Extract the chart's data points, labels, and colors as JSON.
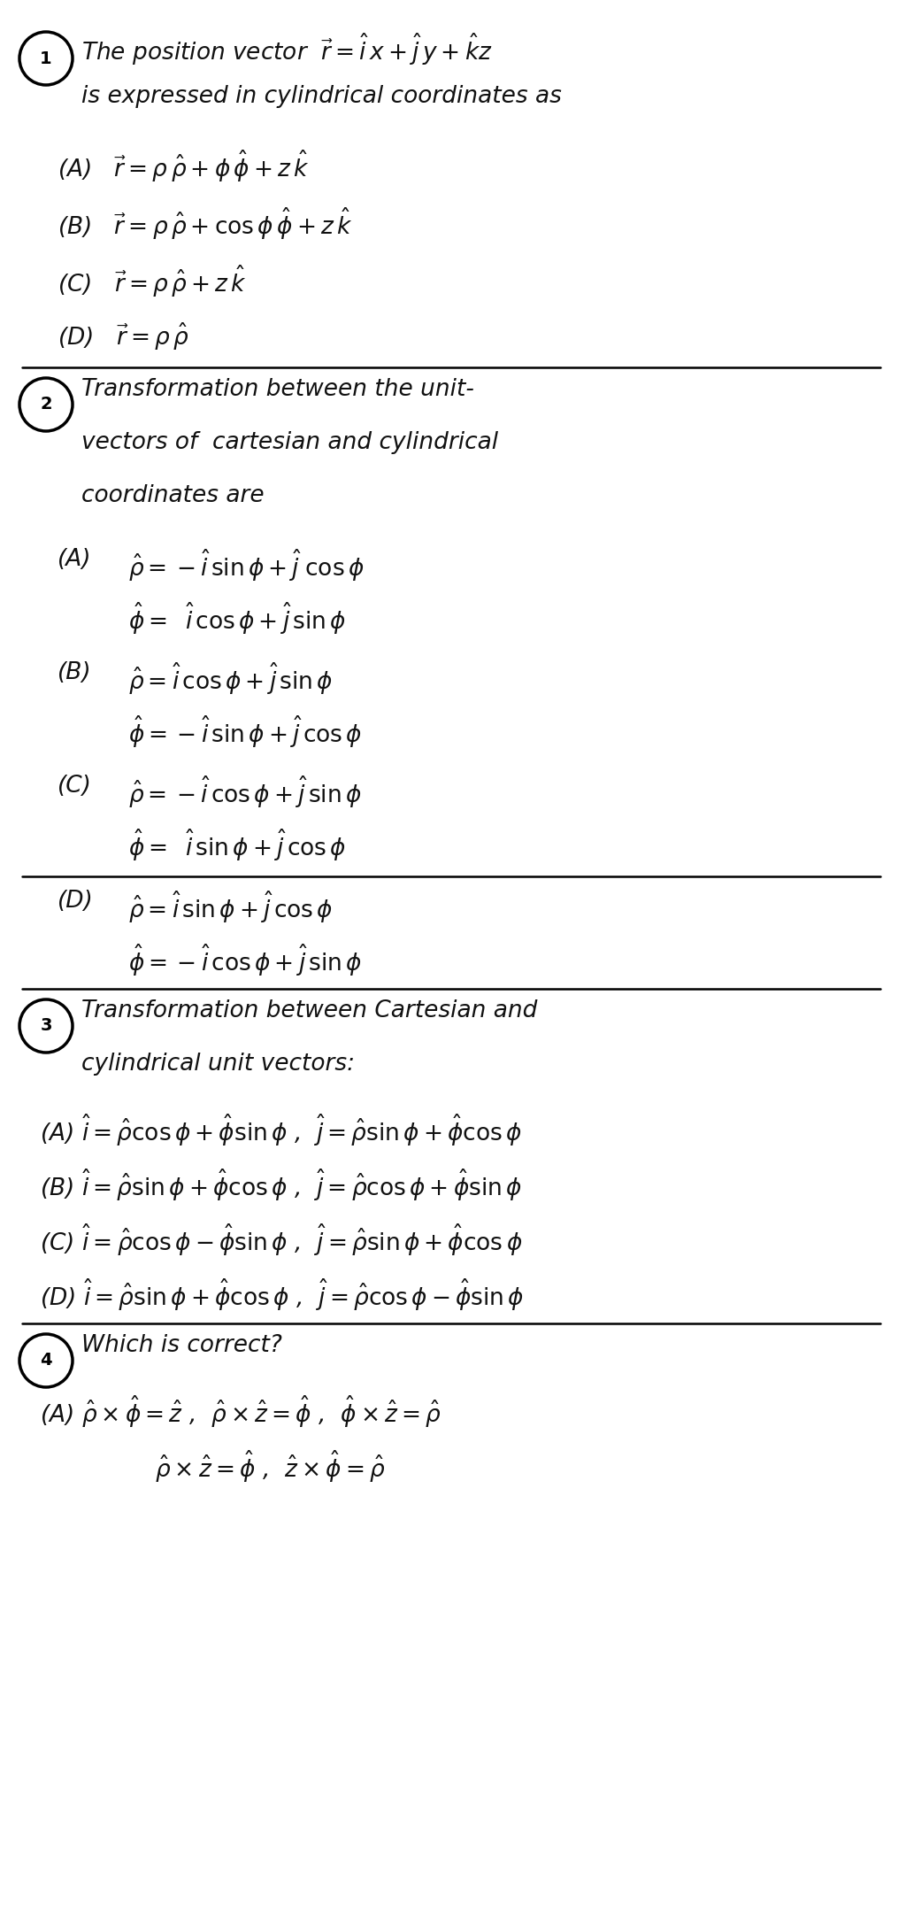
{
  "bg_color": "#ffffff",
  "text_color": "#111111",
  "fs": 19,
  "sections": [
    {
      "number": "1",
      "q1": "The position vector  $\\vec{r} = \\hat{i}\\,x + \\hat{j}\\,y + \\hat{k}z$",
      "q2": "is expressed in cylindrical coordinates as",
      "options": [
        "(A)   $\\vec{r} = \\rho\\,\\hat{\\rho} + \\phi\\,\\hat{\\phi} + z\\,\\hat{k}$",
        "(B)   $\\vec{r} = \\rho\\,\\hat{\\rho} + \\cos\\phi\\,\\hat{\\phi} + z\\,\\hat{k}$",
        "(C)   $\\vec{r} = \\rho\\,\\hat{\\rho} + z\\,\\hat{k}$",
        "(D)   $\\vec{r} = \\rho\\,\\hat{\\rho}$"
      ]
    },
    {
      "number": "2",
      "q1": "Transformation between the unit-",
      "q2": "vectors of  cartesian and cylindrical",
      "q3": "coordinates are",
      "subs": [
        {
          "label": "(A)",
          "line1": "$\\hat{\\rho} = -\\hat{i}\\,\\sin\\phi + \\hat{j}\\;\\cos\\phi$",
          "line2": "$\\hat{\\phi} = \\;\\;\\hat{i}\\,\\cos\\phi + \\hat{j}\\,\\sin\\phi$"
        },
        {
          "label": "(B)",
          "line1": "$\\hat{\\rho} = \\hat{i}\\,\\cos\\phi + \\hat{j}\\,\\sin\\phi$",
          "line2": "$\\hat{\\phi} = -\\hat{i}\\,\\sin\\phi + \\hat{j}\\,\\cos\\phi$"
        },
        {
          "label": "(C)",
          "line1": "$\\hat{\\rho} = -\\hat{i}\\,\\cos\\phi + \\hat{j}\\,\\sin\\phi$",
          "line2": "$\\hat{\\phi} = \\;\\;\\hat{i}\\,\\sin\\phi + \\hat{j}\\,\\cos\\phi$"
        }
      ],
      "sep_sub": {
        "label": "(D)",
        "line1": "$\\hat{\\rho} = \\hat{i}\\,\\sin\\phi + \\hat{j}\\,\\cos\\phi$",
        "line2": "$\\hat{\\phi} = -\\hat{i}\\,\\cos\\phi + \\hat{j}\\,\\sin\\phi$"
      }
    },
    {
      "number": "3",
      "q1": "Transformation between Cartesian and",
      "q2": "cylindrical unit vectors:",
      "subs": [
        "(A) $\\hat{i} = \\hat{\\rho}\\cos\\phi + \\hat{\\phi}\\sin\\phi$ ,  $\\hat{j} = \\hat{\\rho}\\sin\\phi + \\hat{\\phi}\\cos\\phi$",
        "(B) $\\hat{i} = \\hat{\\rho}\\sin\\phi + \\hat{\\phi}\\cos\\phi$ ,  $\\hat{j} = \\hat{\\rho}\\cos\\phi + \\hat{\\phi}\\sin\\phi$",
        "(C) $\\hat{i} = \\hat{\\rho}\\cos\\phi - \\hat{\\phi}\\sin\\phi$ ,  $\\hat{j} = \\hat{\\rho}\\sin\\phi + \\hat{\\phi}\\cos\\phi$",
        "(D) $\\hat{i} = \\hat{\\rho}\\sin\\phi + \\hat{\\phi}\\cos\\phi$ ,  $\\hat{j} = \\hat{\\rho}\\cos\\phi - \\hat{\\phi}\\sin\\phi$"
      ]
    },
    {
      "number": "4",
      "q1": "Which is correct?",
      "subs": [
        "(A) $\\hat{\\rho}\\times\\hat{\\phi} = \\hat{z}$ ,  $\\hat{\\rho}\\times\\hat{z} = \\hat{\\phi}$ ,  $\\hat{\\phi}\\times\\hat{z} = \\hat{\\rho}$",
        "     $\\hat{\\rho}\\times\\hat{z} = \\hat{\\phi}$ ,  $\\hat{z}\\times\\hat{\\phi} = \\hat{\\rho}$"
      ]
    }
  ]
}
